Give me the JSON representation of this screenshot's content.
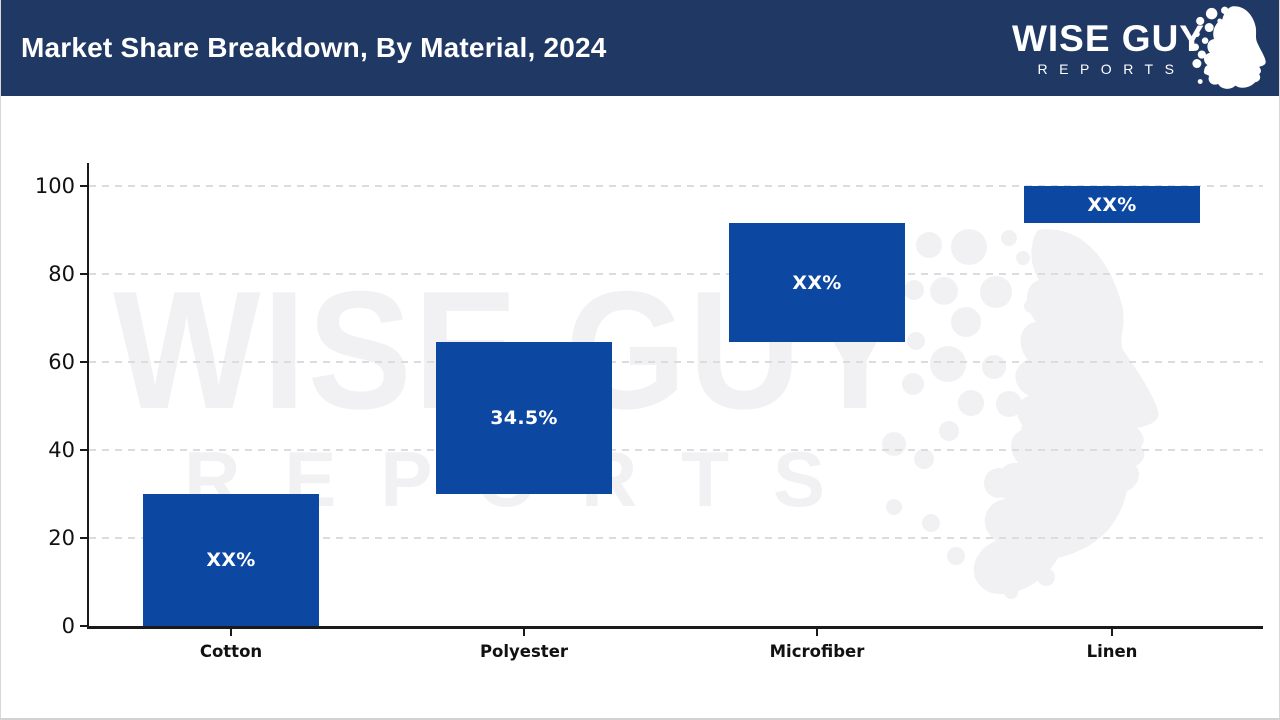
{
  "header": {
    "title": "Market Share Breakdown, By Material, 2024",
    "logo": {
      "name_top": "WISE GUY",
      "name_bottom": "REPORTS"
    }
  },
  "watermark": {
    "top": "WISE GUY",
    "bottom": "REPORTS"
  },
  "chart_data": {
    "type": "bar",
    "subtype": "floating-segment-bars",
    "title": "Market Share Breakdown, By Material, 2024",
    "categories": [
      "Cotton",
      "Polyester",
      "Microfiber",
      "Linen"
    ],
    "series": [
      {
        "name": "Market share (%)",
        "segments": [
          {
            "category": "Cotton",
            "start": 0,
            "end": 30,
            "label": "XX%"
          },
          {
            "category": "Polyester",
            "start": 30,
            "end": 64.5,
            "label": "34.5%"
          },
          {
            "category": "Microfiber",
            "start": 64.5,
            "end": 91.5,
            "label": "XX%"
          },
          {
            "category": "Linen",
            "start": 91.5,
            "end": 100,
            "label": "XX%"
          }
        ]
      }
    ],
    "xlabel": "",
    "ylabel": "",
    "yticks": [
      0,
      20,
      40,
      60,
      80,
      100
    ],
    "ylim": [
      0,
      105
    ],
    "grid": {
      "horizontal": true,
      "style": "dashed",
      "color": "#dcdcdc"
    },
    "legend": "none",
    "bar_color": "#0C47A1",
    "bar_label_color": "#ffffff"
  },
  "colors": {
    "header_bg": "#1F3864",
    "bar": "#0C47A1",
    "axis": "#1a1a1a",
    "grid": "#dcdcdc",
    "watermark": "#f1f1f3",
    "page_border": "#d8d8d8"
  }
}
